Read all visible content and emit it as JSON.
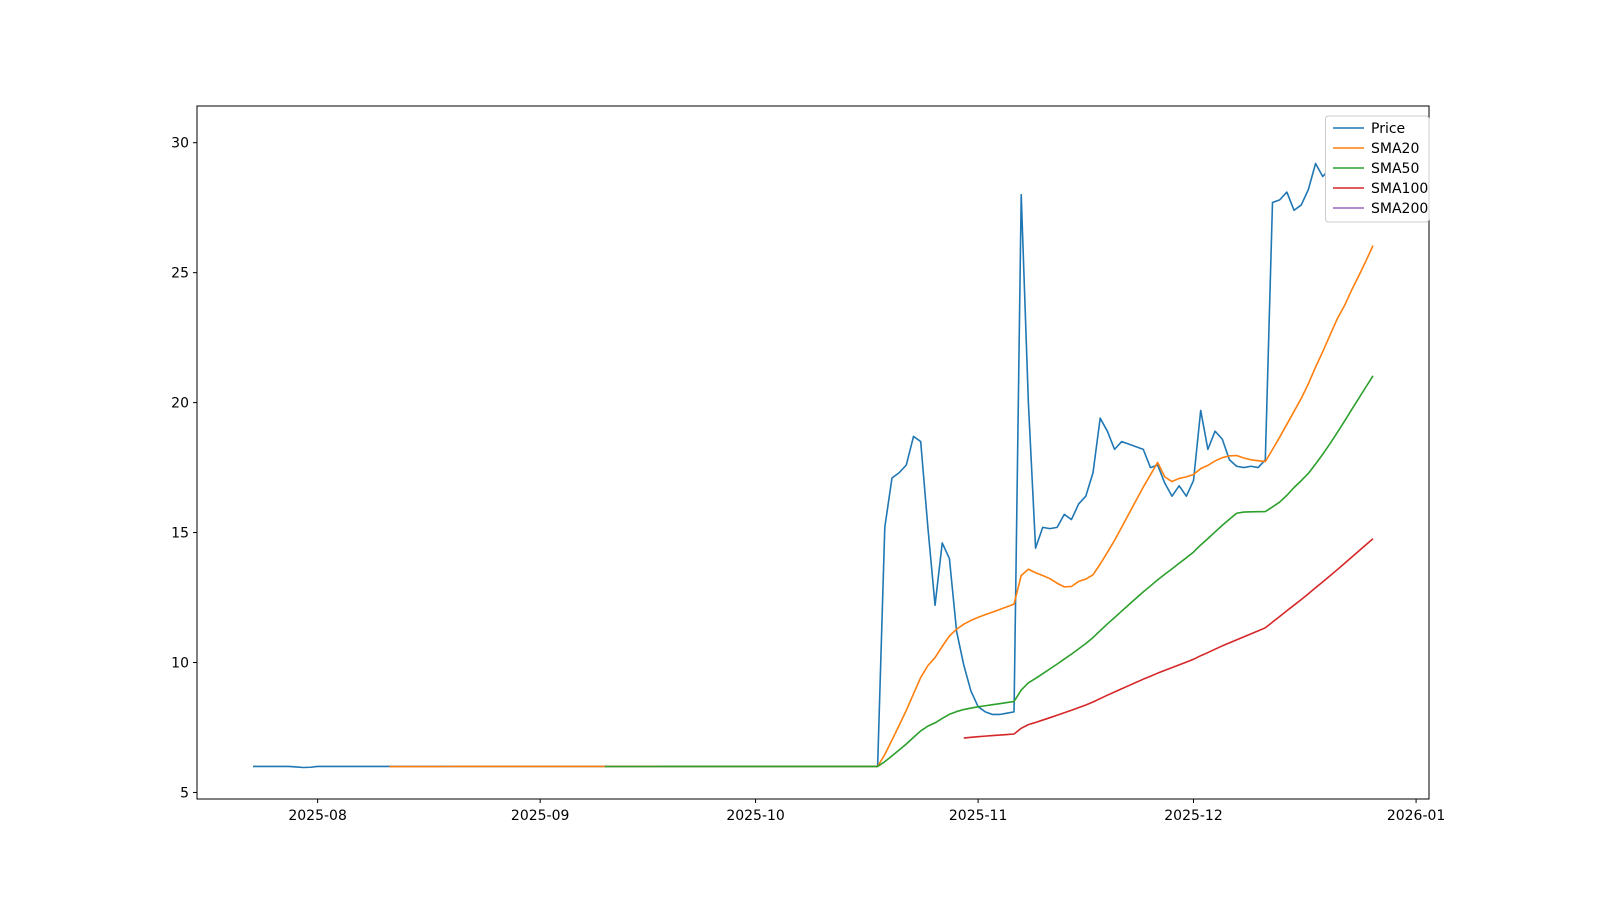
{
  "chart_data": {
    "type": "line",
    "title": "",
    "xlabel": "",
    "ylabel": "",
    "grid": false,
    "background_color": "#ffffff",
    "axes_edge_color": "#000000",
    "x_axis": {
      "ticks": [
        {
          "label": "2025-08",
          "date": "2025-08-01"
        },
        {
          "label": "2025-09",
          "date": "2025-09-01"
        },
        {
          "label": "2025-10",
          "date": "2025-10-01"
        },
        {
          "label": "2025-11",
          "date": "2025-11-01"
        },
        {
          "label": "2025-12",
          "date": "2025-12-01"
        },
        {
          "label": "2026-01",
          "date": "2026-01-01"
        }
      ]
    },
    "y_axis": {
      "ticks": [
        5,
        10,
        15,
        20,
        25,
        30
      ]
    },
    "margin_fraction": 0.05,
    "legend": {
      "position": "upper-right",
      "entries": [
        "Price",
        "SMA20",
        "SMA50",
        "SMA100",
        "SMA200"
      ]
    },
    "series": [
      {
        "name": "Price",
        "color": "#1f77b4",
        "start_date": "2025-07-23",
        "frequency": "daily",
        "values": [
          6,
          6,
          6,
          6,
          6,
          6,
          5.98,
          5.96,
          5.97,
          6,
          6,
          6,
          6,
          6,
          6,
          6,
          6,
          6,
          6,
          6,
          6,
          6,
          6,
          6,
          6,
          6,
          6,
          6,
          6,
          6,
          6,
          6,
          6,
          6,
          6,
          6,
          6,
          6,
          6,
          6,
          6,
          6,
          6,
          6,
          6,
          6,
          6,
          6,
          6,
          6,
          6,
          6,
          6,
          6,
          6,
          6,
          6,
          6,
          6,
          6,
          6,
          6,
          6,
          6,
          6,
          6,
          6,
          6,
          6,
          6,
          6,
          6,
          6,
          6,
          6,
          6,
          6,
          6,
          6,
          6,
          6,
          6,
          6,
          6,
          6,
          6,
          6,
          6,
          15.2,
          17.1,
          17.3,
          17.6,
          18.7,
          18.5,
          15.2,
          12.2,
          14.6,
          14,
          11.2,
          9.9,
          8.9,
          8.3,
          8.1,
          8,
          8,
          8.05,
          8.1,
          28,
          20,
          14.4,
          15.2,
          15.15,
          15.2,
          15.7,
          15.5,
          16.1,
          16.4,
          17.3,
          19.4,
          18.9,
          18.2,
          18.5,
          18.4,
          18.3,
          18.2,
          17.5,
          17.6,
          16.9,
          16.4,
          16.8,
          16.4,
          17,
          19.7,
          18.2,
          18.9,
          18.6,
          17.8,
          17.55,
          17.5,
          17.55,
          17.5,
          17.8,
          27.7,
          27.8,
          28.1,
          27.4,
          27.6,
          28.2,
          29.2,
          28.7,
          29,
          29.4,
          29.8,
          30.2,
          29.9,
          30.1,
          29.8
        ]
      },
      {
        "name": "SMA20",
        "color": "#ff7f0e",
        "derived_from": "Price",
        "window": 20
      },
      {
        "name": "SMA50",
        "color": "#2ca02c",
        "derived_from": "Price",
        "window": 50
      },
      {
        "name": "SMA100",
        "color": "#d62728",
        "derived_from": "Price",
        "window": 100
      },
      {
        "name": "SMA200",
        "color": "#9467bd",
        "derived_from": "Price",
        "window": 200
      }
    ]
  }
}
